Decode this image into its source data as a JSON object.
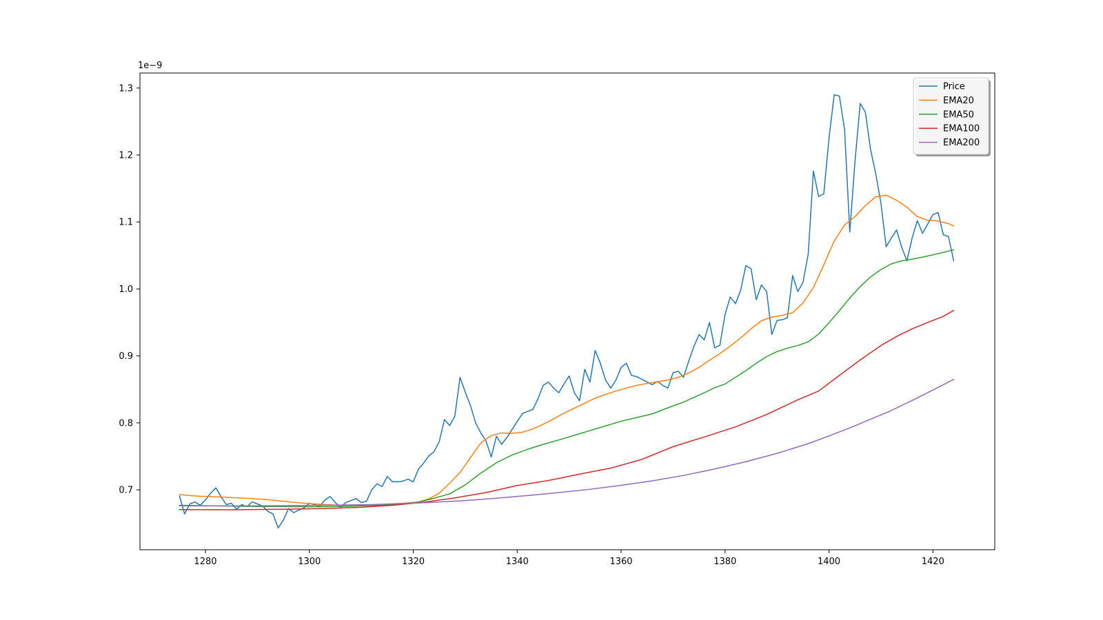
{
  "figure": {
    "background": "#ffffff",
    "text_color": "#000000",
    "spine_color": "#000000"
  },
  "chart_data": {
    "type": "line",
    "title": "",
    "xlabel": "",
    "ylabel": "",
    "grid": false,
    "y_offset_label": "1e−9",
    "value_scale": "1e-9",
    "xlim": [
      1267.4,
      1431.9
    ],
    "ylim": [
      0.6106,
      1.3224
    ],
    "x_ticks": [
      1280,
      1300,
      1320,
      1340,
      1360,
      1380,
      1400,
      1420
    ],
    "x_tick_labels": [
      "1280",
      "1300",
      "1320",
      "1340",
      "1360",
      "1380",
      "1400",
      "1420"
    ],
    "y_ticks": [
      0.7,
      0.8,
      0.9,
      1.0,
      1.1,
      1.2,
      1.3
    ],
    "y_tick_labels": [
      "0.7",
      "0.8",
      "0.9",
      "1.0",
      "1.1",
      "1.2",
      "1.3"
    ],
    "legend": {
      "position": "upper right",
      "entries": [
        {
          "label": "Price",
          "color": "#1f77b4"
        },
        {
          "label": "EMA20",
          "color": "#ff7f0e"
        },
        {
          "label": "EMA50",
          "color": "#2ca02c"
        },
        {
          "label": "EMA100",
          "color": "#d62728"
        },
        {
          "label": "EMA200",
          "color": "#9467bd"
        }
      ]
    },
    "series": [
      {
        "name": "Price",
        "color": "#1f77b4",
        "x_start": 1275,
        "x_step": 1,
        "values": [
          0.691,
          0.664,
          0.679,
          0.682,
          0.677,
          0.685,
          0.695,
          0.703,
          0.69,
          0.678,
          0.68,
          0.671,
          0.678,
          0.675,
          0.682,
          0.679,
          0.676,
          0.668,
          0.664,
          0.643,
          0.655,
          0.672,
          0.666,
          0.67,
          0.673,
          0.68,
          0.678,
          0.675,
          0.685,
          0.69,
          0.681,
          0.674,
          0.681,
          0.684,
          0.687,
          0.681,
          0.683,
          0.7,
          0.709,
          0.705,
          0.72,
          0.712,
          0.712,
          0.713,
          0.716,
          0.712,
          0.731,
          0.74,
          0.751,
          0.757,
          0.772,
          0.805,
          0.796,
          0.81,
          0.868,
          0.846,
          0.826,
          0.8,
          0.785,
          0.773,
          0.749,
          0.78,
          0.768,
          0.778,
          0.79,
          0.802,
          0.814,
          0.817,
          0.82,
          0.836,
          0.856,
          0.861,
          0.852,
          0.845,
          0.858,
          0.87,
          0.845,
          0.833,
          0.88,
          0.861,
          0.908,
          0.889,
          0.864,
          0.852,
          0.864,
          0.883,
          0.889,
          0.871,
          0.869,
          0.865,
          0.861,
          0.857,
          0.862,
          0.856,
          0.852,
          0.875,
          0.877,
          0.868,
          0.892,
          0.914,
          0.932,
          0.924,
          0.95,
          0.912,
          0.916,
          0.962,
          0.988,
          0.978,
          0.998,
          1.035,
          1.03,
          0.984,
          1.006,
          0.996,
          0.932,
          0.953,
          0.954,
          0.957,
          1.02,
          0.996,
          1.01,
          1.052,
          1.176,
          1.138,
          1.142,
          1.225,
          1.29,
          1.288,
          1.238,
          1.085,
          1.19,
          1.277,
          1.264,
          1.208,
          1.172,
          1.128,
          1.063,
          1.076,
          1.088,
          1.062,
          1.042,
          1.076,
          1.102,
          1.083,
          1.097,
          1.111,
          1.114,
          1.081,
          1.078,
          1.042
        ]
      },
      {
        "name": "EMA20",
        "color": "#ff7f0e",
        "points": [
          [
            1275,
            0.693
          ],
          [
            1277,
            0.6915
          ],
          [
            1279,
            0.6905
          ],
          [
            1281,
            0.69
          ],
          [
            1283,
            0.6893
          ],
          [
            1285,
            0.6885
          ],
          [
            1287,
            0.6878
          ],
          [
            1289,
            0.687
          ],
          [
            1291,
            0.686
          ],
          [
            1293,
            0.6845
          ],
          [
            1295,
            0.683
          ],
          [
            1297,
            0.6815
          ],
          [
            1299,
            0.68
          ],
          [
            1301,
            0.679
          ],
          [
            1303,
            0.678
          ],
          [
            1305,
            0.6773
          ],
          [
            1307,
            0.6768
          ],
          [
            1309,
            0.6768
          ],
          [
            1311,
            0.6772
          ],
          [
            1313,
            0.678
          ],
          [
            1315,
            0.6788
          ],
          [
            1317,
            0.6795
          ],
          [
            1319,
            0.6805
          ],
          [
            1321,
            0.682
          ],
          [
            1323,
            0.6865
          ],
          [
            1325,
            0.695
          ],
          [
            1327,
            0.71
          ],
          [
            1329,
            0.726
          ],
          [
            1331,
            0.748
          ],
          [
            1333,
            0.77
          ],
          [
            1335,
            0.781
          ],
          [
            1337,
            0.785
          ],
          [
            1339,
            0.7845
          ],
          [
            1341,
            0.786
          ],
          [
            1343,
            0.791
          ],
          [
            1345,
            0.798
          ],
          [
            1347,
            0.806
          ],
          [
            1349,
            0.8145
          ],
          [
            1351,
            0.822
          ],
          [
            1353,
            0.8295
          ],
          [
            1355,
            0.837
          ],
          [
            1357,
            0.8425
          ],
          [
            1359,
            0.8475
          ],
          [
            1361,
            0.852
          ],
          [
            1363,
            0.856
          ],
          [
            1365,
            0.859
          ],
          [
            1367,
            0.8615
          ],
          [
            1369,
            0.864
          ],
          [
            1371,
            0.868
          ],
          [
            1373,
            0.8745
          ],
          [
            1375,
            0.883
          ],
          [
            1377,
            0.8935
          ],
          [
            1379,
            0.9035
          ],
          [
            1381,
            0.9145
          ],
          [
            1383,
            0.927
          ],
          [
            1385,
            0.9405
          ],
          [
            1387,
            0.9525
          ],
          [
            1389,
            0.958
          ],
          [
            1391,
            0.9605
          ],
          [
            1393,
            0.9645
          ],
          [
            1395,
            0.979
          ],
          [
            1397,
            1.002
          ],
          [
            1399,
            1.036
          ],
          [
            1401,
            1.0715
          ],
          [
            1403,
            1.0955
          ],
          [
            1405,
            1.108
          ],
          [
            1407,
            1.1245
          ],
          [
            1409,
            1.1375
          ],
          [
            1411,
            1.14
          ],
          [
            1413,
            1.1325
          ],
          [
            1415,
            1.122
          ],
          [
            1417,
            1.108
          ],
          [
            1419,
            1.1025
          ],
          [
            1421,
            1.1015
          ],
          [
            1423,
            1.0975
          ],
          [
            1424,
            1.094
          ]
        ]
      },
      {
        "name": "EMA50",
        "color": "#2ca02c",
        "points": [
          [
            1275,
            0.677
          ],
          [
            1280,
            0.6763
          ],
          [
            1285,
            0.6757
          ],
          [
            1290,
            0.6752
          ],
          [
            1295,
            0.675
          ],
          [
            1300,
            0.6748
          ],
          [
            1305,
            0.675
          ],
          [
            1310,
            0.676
          ],
          [
            1314,
            0.677
          ],
          [
            1318,
            0.6792
          ],
          [
            1321,
            0.6815
          ],
          [
            1324,
            0.6875
          ],
          [
            1327,
            0.694
          ],
          [
            1330,
            0.7075
          ],
          [
            1333,
            0.725
          ],
          [
            1336,
            0.7405
          ],
          [
            1339,
            0.752
          ],
          [
            1342,
            0.7605
          ],
          [
            1345,
            0.768
          ],
          [
            1348,
            0.7745
          ],
          [
            1351,
            0.7815
          ],
          [
            1354,
            0.7885
          ],
          [
            1357,
            0.7955
          ],
          [
            1360,
            0.8025
          ],
          [
            1363,
            0.808
          ],
          [
            1366,
            0.8135
          ],
          [
            1369,
            0.8225
          ],
          [
            1372,
            0.831
          ],
          [
            1374,
            0.838
          ],
          [
            1376,
            0.845
          ],
          [
            1378,
            0.8525
          ],
          [
            1380,
            0.858
          ],
          [
            1382,
            0.868
          ],
          [
            1384,
            0.878
          ],
          [
            1386,
            0.889
          ],
          [
            1388,
            0.899
          ],
          [
            1390,
            0.9065
          ],
          [
            1392,
            0.9115
          ],
          [
            1394,
            0.9155
          ],
          [
            1396,
            0.921
          ],
          [
            1398,
            0.9325
          ],
          [
            1400,
            0.9495
          ],
          [
            1402,
            0.9675
          ],
          [
            1404,
            0.9865
          ],
          [
            1406,
            1.0035
          ],
          [
            1408,
            1.018
          ],
          [
            1410,
            1.029
          ],
          [
            1412,
            1.0375
          ],
          [
            1414,
            1.042
          ],
          [
            1416,
            1.0445
          ],
          [
            1418,
            1.0475
          ],
          [
            1420,
            1.051
          ],
          [
            1422,
            1.0545
          ],
          [
            1424,
            1.0585
          ]
        ]
      },
      {
        "name": "EMA100",
        "color": "#d62728",
        "points": [
          [
            1275,
            0.6705
          ],
          [
            1285,
            0.6703
          ],
          [
            1295,
            0.671
          ],
          [
            1303,
            0.672
          ],
          [
            1310,
            0.674
          ],
          [
            1316,
            0.677
          ],
          [
            1322,
            0.6815
          ],
          [
            1328,
            0.688
          ],
          [
            1334,
            0.696
          ],
          [
            1340,
            0.7065
          ],
          [
            1346,
            0.714
          ],
          [
            1352,
            0.7235
          ],
          [
            1358,
            0.7325
          ],
          [
            1364,
            0.7455
          ],
          [
            1370,
            0.7645
          ],
          [
            1376,
            0.779
          ],
          [
            1382,
            0.794
          ],
          [
            1388,
            0.8125
          ],
          [
            1394,
            0.8345
          ],
          [
            1398,
            0.8475
          ],
          [
            1402,
            0.871
          ],
          [
            1406,
            0.894
          ],
          [
            1410,
            0.9155
          ],
          [
            1413,
            0.929
          ],
          [
            1416,
            0.9405
          ],
          [
            1419,
            0.95
          ],
          [
            1422,
            0.959
          ],
          [
            1424,
            0.968
          ]
        ]
      },
      {
        "name": "EMA200",
        "color": "#9467bd",
        "points": [
          [
            1275,
            0.676
          ],
          [
            1287,
            0.676
          ],
          [
            1297,
            0.6765
          ],
          [
            1305,
            0.6772
          ],
          [
            1312,
            0.678
          ],
          [
            1318,
            0.6795
          ],
          [
            1324,
            0.6815
          ],
          [
            1330,
            0.684
          ],
          [
            1336,
            0.6875
          ],
          [
            1342,
            0.6915
          ],
          [
            1348,
            0.696
          ],
          [
            1354,
            0.7008
          ],
          [
            1360,
            0.7068
          ],
          [
            1366,
            0.7135
          ],
          [
            1372,
            0.7215
          ],
          [
            1378,
            0.7312
          ],
          [
            1384,
            0.742
          ],
          [
            1390,
            0.7545
          ],
          [
            1396,
            0.769
          ],
          [
            1400,
            0.7805
          ],
          [
            1404,
            0.7925
          ],
          [
            1408,
            0.8055
          ],
          [
            1412,
            0.8185
          ],
          [
            1416,
            0.8335
          ],
          [
            1420,
            0.849
          ],
          [
            1424,
            0.865
          ]
        ]
      }
    ]
  }
}
